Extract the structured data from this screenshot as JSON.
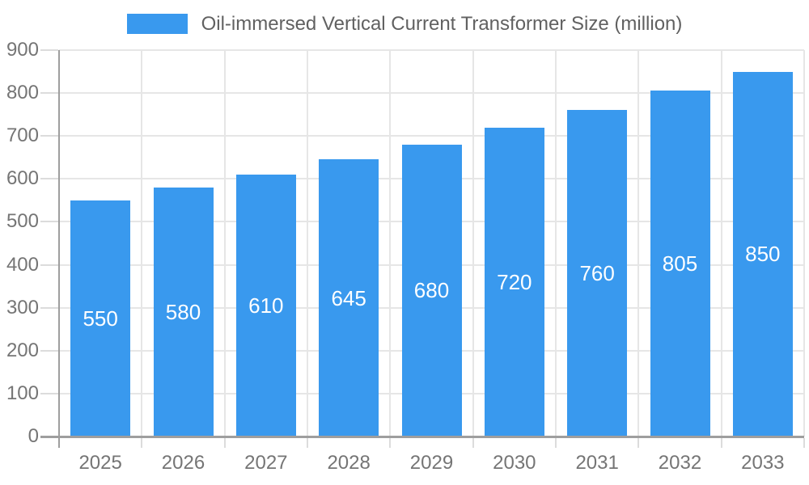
{
  "chart_data": {
    "type": "bar",
    "title": "Oil-immersed Vertical Current Transformer Size (million)",
    "categories": [
      "2025",
      "2026",
      "2027",
      "2028",
      "2029",
      "2030",
      "2031",
      "2032",
      "2033"
    ],
    "values": [
      550,
      580,
      610,
      645,
      680,
      720,
      760,
      805,
      850
    ],
    "series": [
      {
        "name": "Oil-immersed Vertical Current Transformer Size (million)",
        "values": [
          550,
          580,
          610,
          645,
          680,
          720,
          760,
          805,
          850
        ]
      }
    ],
    "xlabel": "",
    "ylabel": "",
    "ylim": [
      0,
      900
    ],
    "yticks": [
      0,
      100,
      200,
      300,
      400,
      500,
      600,
      700,
      800,
      900
    ],
    "grid": true,
    "legend_position": "top-center",
    "value_labels": "inside-middle",
    "colors": {
      "bar": "#3999ee",
      "value_label_text": "#ffffff",
      "axis_label_text": "#757575",
      "legend_text": "#616161",
      "gridline": "#e6e6e6",
      "tick": "#dcdcdc",
      "axis_line": "#9e9e9e",
      "background": "#ffffff"
    }
  }
}
